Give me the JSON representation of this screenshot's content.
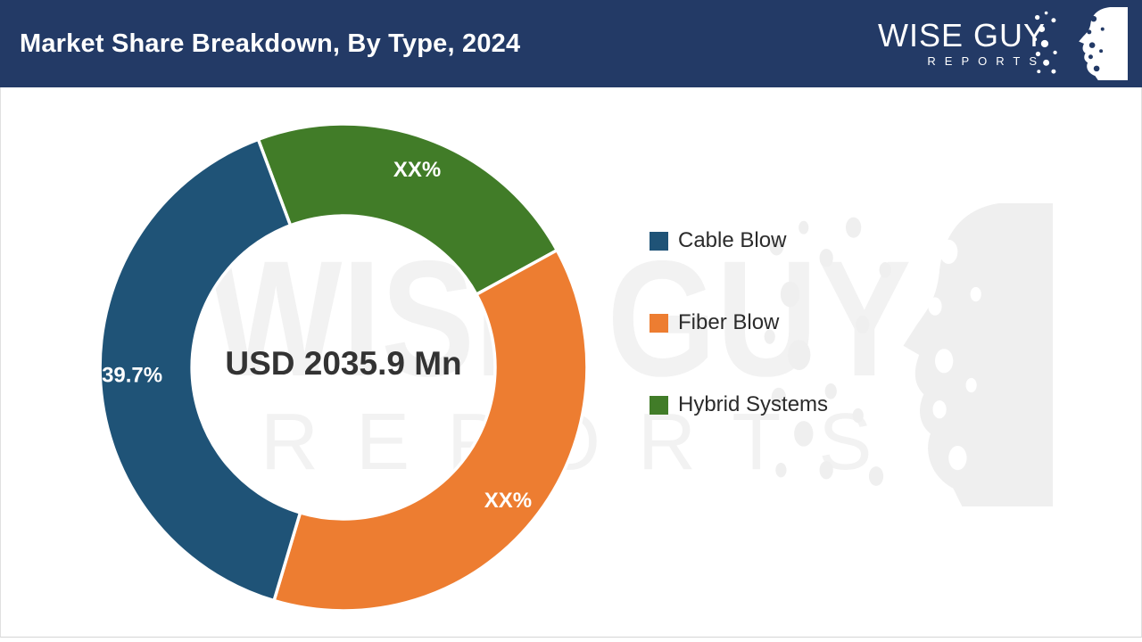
{
  "header": {
    "title": "Market Share Breakdown, By Type, 2024",
    "bg_color": "#233a66",
    "logo": {
      "line1": "WISE GUY",
      "line2": "REPORTS"
    }
  },
  "watermark": {
    "line1": "WISE GUY",
    "line2": "REPORTS"
  },
  "chart_data": {
    "type": "pie",
    "subtype": "donut",
    "title": "Market Share Breakdown, By Type, 2024",
    "center_label": "USD 2035.9 Mn",
    "legend_position": "right",
    "start_angle_deg_from_top": -20.5,
    "segments": [
      {
        "name": "Hybrid Systems",
        "label": "XX%",
        "percent": 22.7,
        "color": "#417c28"
      },
      {
        "name": "Fiber Blow",
        "label": "XX%",
        "percent": 37.6,
        "color": "#ed7d31"
      },
      {
        "name": "Cable Blow",
        "label": "39.7%",
        "percent": 39.7,
        "color": "#1f5377"
      }
    ],
    "legend": [
      {
        "label": "Cable Blow",
        "color": "#1f5377"
      },
      {
        "label": "Fiber Blow",
        "color": "#ed7d31"
      },
      {
        "label": "Hybrid Systems",
        "color": "#417c28"
      }
    ]
  }
}
